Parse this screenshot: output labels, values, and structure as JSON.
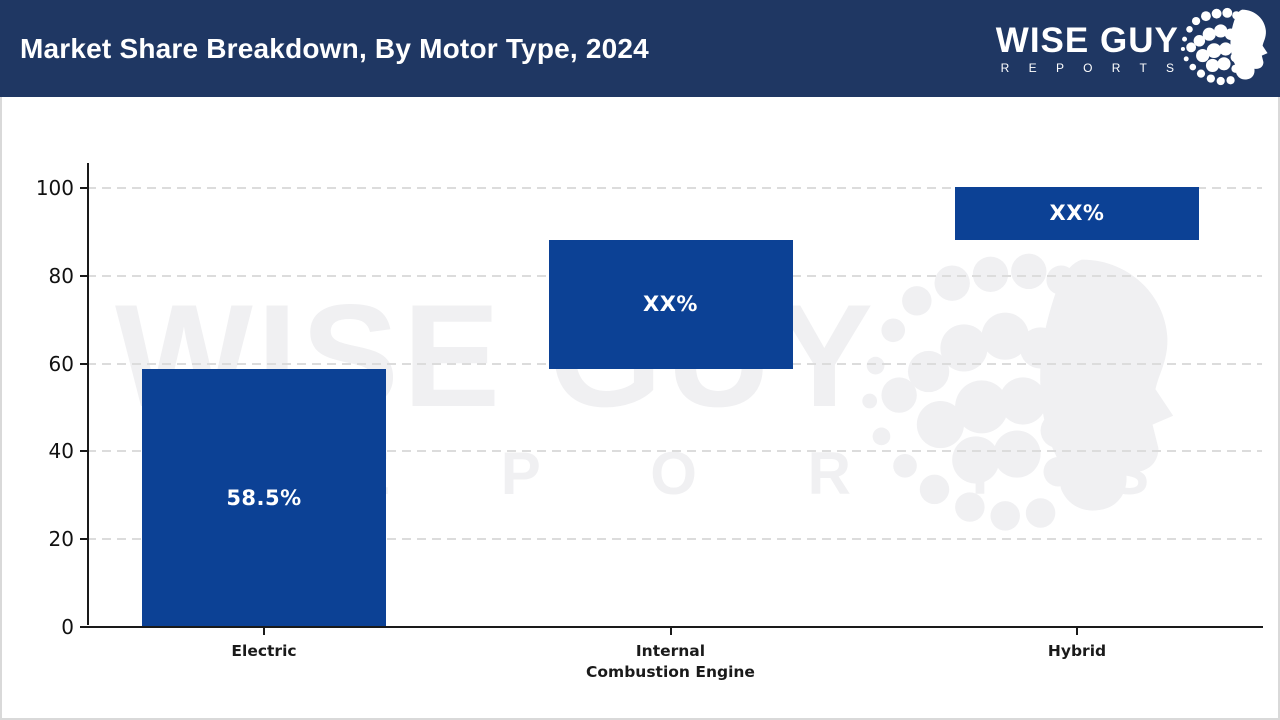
{
  "header": {
    "title": "Market Share Breakdown, By Motor Type, 2024",
    "brand": {
      "line1": "WISE GUY",
      "line2": "R E P O R T S"
    }
  },
  "watermark": {
    "line1": "WISE GUY",
    "line2": "R E P O R T S"
  },
  "chart_data": {
    "type": "bar",
    "subtype": "stacked-waterfall-segments",
    "title": "Market Share Breakdown, By Motor Type, 2024",
    "categories": [
      "Electric",
      "Internal Combustion Engine",
      "Hybrid"
    ],
    "x_display_labels": [
      "Electric",
      "Internal\nCombustion Engine",
      "Hybrid"
    ],
    "bars": [
      {
        "category": "Electric",
        "start": 0,
        "end": 58.5,
        "label": "58.5%"
      },
      {
        "category": "Internal Combustion Engine",
        "start": 58.5,
        "end": 88,
        "label": "XX%"
      },
      {
        "category": "Hybrid",
        "start": 88,
        "end": 100,
        "label": "XX%"
      }
    ],
    "ylim": [
      0,
      100
    ],
    "yticks": [
      "0",
      "20",
      "40",
      "60",
      "80",
      "100"
    ],
    "ytick_values": [
      0,
      20,
      40,
      60,
      80,
      100
    ],
    "grid": "horizontal-dashed",
    "legend": "none",
    "colors": {
      "bar": "#0c4195",
      "grid": "#dcdcdc",
      "axis": "#1a1a1a",
      "header_bg": "#1f3763",
      "watermark": "#f0f0f2",
      "bar_label": "#ffffff"
    }
  }
}
